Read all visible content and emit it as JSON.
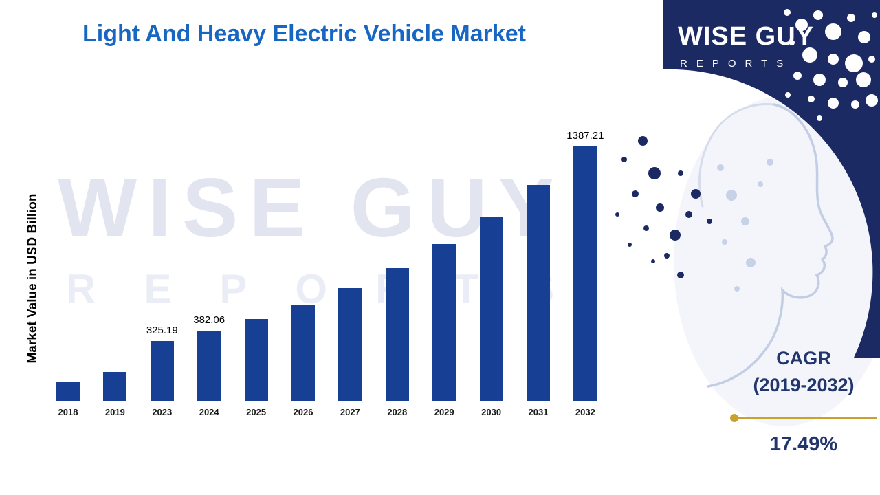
{
  "title": "Light And Heavy Electric Vehicle Market",
  "logo": {
    "name": "WISE GUY",
    "sub": "REPORTS"
  },
  "watermark": {
    "line1": "WISE GUY",
    "line2": "REPORTS"
  },
  "y_axis_label": "Market Value in USD Billion",
  "cagr": {
    "label": "CAGR",
    "period": "(2019-2032)",
    "value": "17.49%"
  },
  "chart_data": {
    "type": "bar",
    "title": "Light And Heavy Electric Vehicle Market",
    "ylabel": "Market Value in USD Billion",
    "xlabel": "",
    "categories": [
      "2018",
      "2019",
      "2023",
      "2024",
      "2025",
      "2026",
      "2027",
      "2028",
      "2029",
      "2030",
      "2031",
      "2032"
    ],
    "values": [
      105,
      158,
      325.19,
      382.06,
      447,
      523,
      616,
      722,
      856,
      1000,
      1178,
      1387.21
    ],
    "data_labels": [
      "",
      "",
      "325.19",
      "382.06",
      "",
      "",
      "",
      "",
      "",
      "",
      "",
      "1387.21"
    ],
    "ylim": [
      0,
      1450
    ],
    "grid": false,
    "legend": false
  },
  "colors": {
    "bar": "#173f93",
    "navy_panel": "#1b2a63",
    "title_blue": "#1767c2",
    "gold": "#c9a22e",
    "watermark": "#e2e5f0",
    "watermark_sub": "#eaedf5",
    "cagr_text": "#22366e"
  }
}
